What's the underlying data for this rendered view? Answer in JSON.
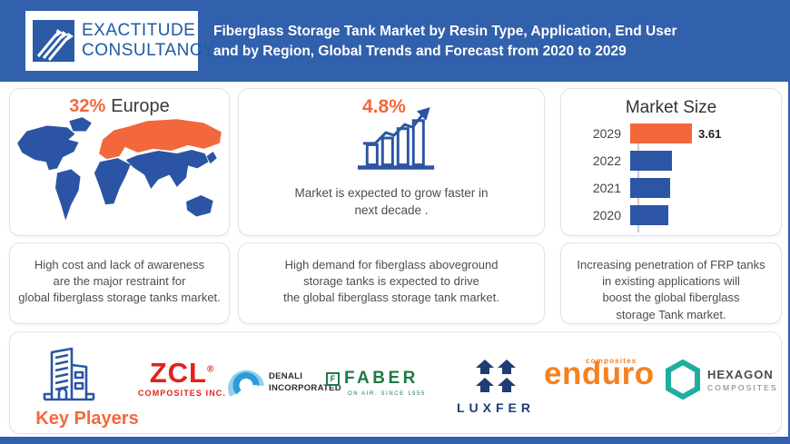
{
  "colors": {
    "header_blue": "#3160ac",
    "accent_orange": "#f2683c",
    "map_blue": "#2b55a4",
    "bar_blue": "#2d55a6"
  },
  "header": {
    "logo_line1": "EXACTITUDE",
    "logo_line2": "CONSULTANCY",
    "title_line1": "Fiberglass Storage Tank Market by Resin Type, Application, End User",
    "title_line2": "and by Region, Global Trends and Forecast from 2020 to 2029"
  },
  "europe_card": {
    "percent": "32%",
    "region": "Europe"
  },
  "growth_card": {
    "percent": "4.8%",
    "caption_line1": "Market is expected to grow faster in",
    "caption_line2": "next decade ."
  },
  "chart_data": {
    "type": "bar",
    "orientation": "horizontal",
    "title": "Market Size",
    "categories": [
      "2029",
      "2022",
      "2021",
      "2020"
    ],
    "values": [
      3.61,
      2.45,
      2.35,
      2.25
    ],
    "value_labels": [
      "3.61",
      "",
      "",
      ""
    ],
    "bar_colors": [
      "#f2683c",
      "#2d55a6",
      "#2d55a6",
      "#2d55a6"
    ],
    "xmax": 3.61,
    "legend": "none",
    "grid": false
  },
  "insights": [
    {
      "line1": "High cost and lack of awareness",
      "line2": "are the major restraint for",
      "line3": "global fiberglass storage tanks market."
    },
    {
      "line1": "High demand for fiberglass aboveground",
      "line2": "storage tanks is expected to drive",
      "line3": "the global fiberglass storage tank market."
    },
    {
      "line1": "Increasing penetration of FRP tanks",
      "line2": "in existing applications will",
      "line3": "boost the global fiberglass",
      "line4": "storage Tank market."
    }
  ],
  "key_players": {
    "title": "Key Players",
    "logos": {
      "zcl": {
        "name": "ZCL",
        "reg": "®",
        "sub": "COMPOSITES INC."
      },
      "denali": {
        "line1": "DENALI",
        "line2": "INCORPORATED"
      },
      "faber": {
        "mark": "F",
        "name": "FABER",
        "tagline": "ON AIR. SINCE 1955"
      },
      "luxfer": {
        "name": "LUXFER"
      },
      "enduro": {
        "name": "enduro",
        "sub": "composites"
      },
      "hexagon": {
        "line1": "HEXAGON",
        "line2": "COMPOSITES"
      }
    }
  }
}
